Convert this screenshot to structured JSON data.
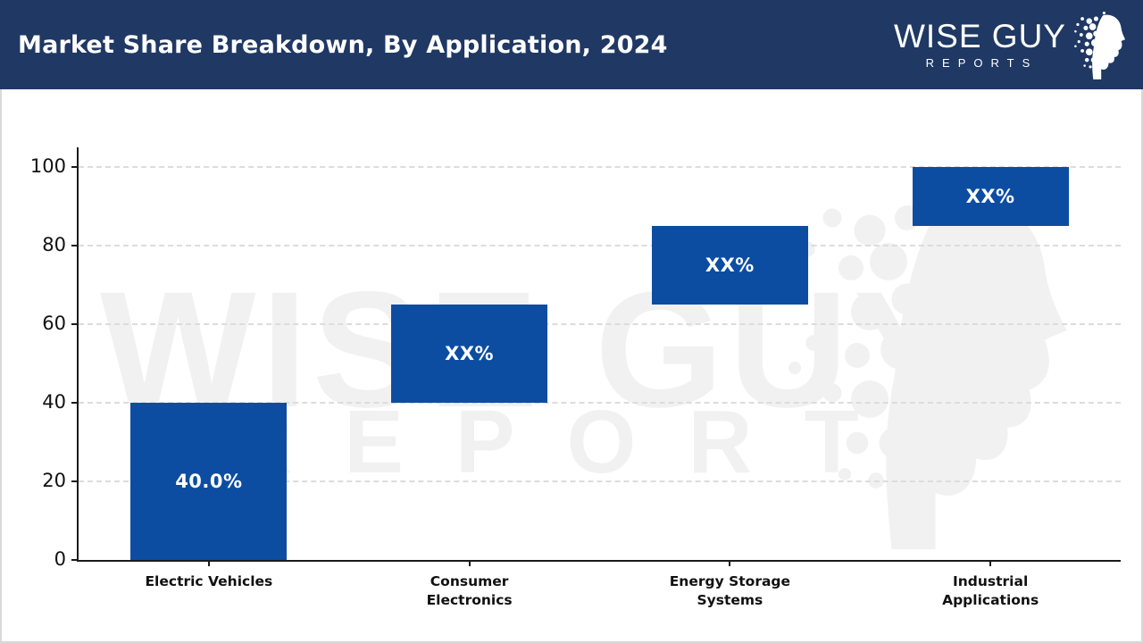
{
  "header": {
    "title": "Market Share Breakdown, By Application, 2024",
    "logo": {
      "wordmark": "WISE GUY",
      "subtext": "REPORTS"
    },
    "bg_color": "#1f3864"
  },
  "watermark": {
    "wordmark": "WISE GUY",
    "subtext": "REPORTS"
  },
  "chart_data": {
    "type": "bar",
    "subtype": "waterfall",
    "title": "Market Share Breakdown, By Application, 2024",
    "categories": [
      "Electric Vehicles",
      "Consumer Electronics",
      "Energy Storage Systems",
      "Industrial Applications"
    ],
    "category_label_lines": [
      [
        "Electric Vehicles"
      ],
      [
        "Consumer",
        "Electronics"
      ],
      [
        "Energy Storage",
        "Systems"
      ],
      [
        "Industrial",
        "Applications"
      ]
    ],
    "segments": [
      {
        "category": "Electric Vehicles",
        "start": 0,
        "end": 40,
        "value": 40,
        "label": "40.0%"
      },
      {
        "category": "Consumer Electronics",
        "start": 40,
        "end": 65,
        "value": 25,
        "label": "XX%"
      },
      {
        "category": "Energy Storage Systems",
        "start": 65,
        "end": 85,
        "value": 20,
        "label": "XX%"
      },
      {
        "category": "Industrial Applications",
        "start": 85,
        "end": 100,
        "value": 15,
        "label": "XX%"
      }
    ],
    "yticks": [
      0,
      20,
      40,
      60,
      80,
      100
    ],
    "ylim": [
      0,
      105
    ],
    "xlabel": "",
    "ylabel": "",
    "grid": "horizontal-dashed",
    "legend": "none",
    "colors": {
      "bar": "#0c4da2",
      "grid": "#dcdcdc",
      "axis": "#1a1a1a",
      "value_label": "#ffffff",
      "header_bg": "#1f3864",
      "watermark": "#f1f1f1",
      "frame_border": "#d9d9d9"
    }
  }
}
